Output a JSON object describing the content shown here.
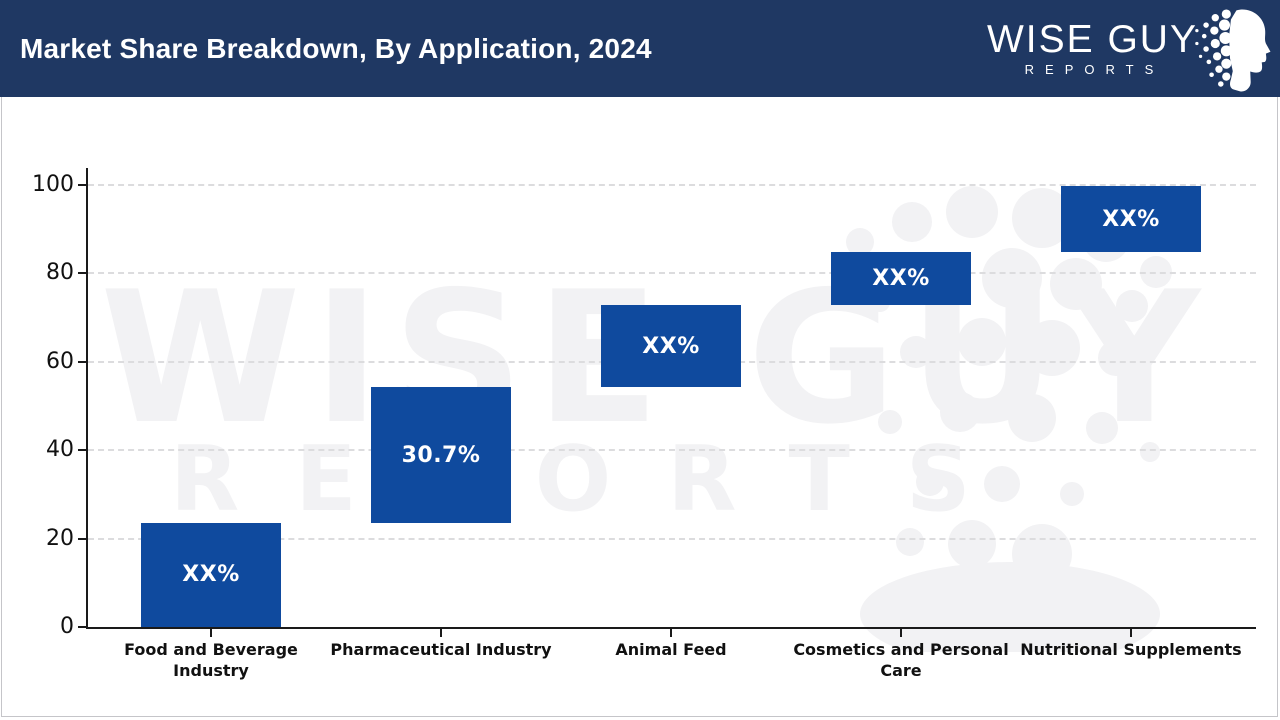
{
  "header": {
    "title": "Market Share Breakdown, By Application, 2024",
    "bg_color": "#1f3863",
    "logo": {
      "line1": "WISE GUY",
      "line2": "REPORTS"
    }
  },
  "watermark": {
    "line1": "WISE GUY",
    "line2": "REPORTS"
  },
  "chart_data": {
    "type": "bar",
    "variant": "waterfall",
    "title": "Market Share Breakdown, By Application, 2024",
    "categories": [
      "Food and Beverage Industry",
      "Pharmaceutical Industry",
      "Animal Feed",
      "Cosmetics and Personal Care",
      "Nutritional Supplements"
    ],
    "values": [
      23.5,
      30.7,
      18.5,
      12.0,
      15.0
    ],
    "cumulative_start": [
      0,
      23.5,
      54.2,
      72.7,
      84.7
    ],
    "cumulative_end": [
      23.5,
      54.2,
      72.7,
      84.7,
      99.7
    ],
    "bar_labels": [
      "XX%",
      "30.7%",
      "XX%",
      "XX%",
      "XX%"
    ],
    "ylim": [
      0,
      100
    ],
    "yticks": [
      0,
      20,
      40,
      60,
      80,
      100
    ],
    "grid": {
      "horizontal": true,
      "style": "dashed"
    },
    "legend": "none",
    "bar_color": "#0f4a9e",
    "bar_label_color": "#ffffff",
    "axis_color": "#1a1a1a",
    "grid_color": "#dcdcde",
    "watermark_color": "#f2f2f4"
  }
}
